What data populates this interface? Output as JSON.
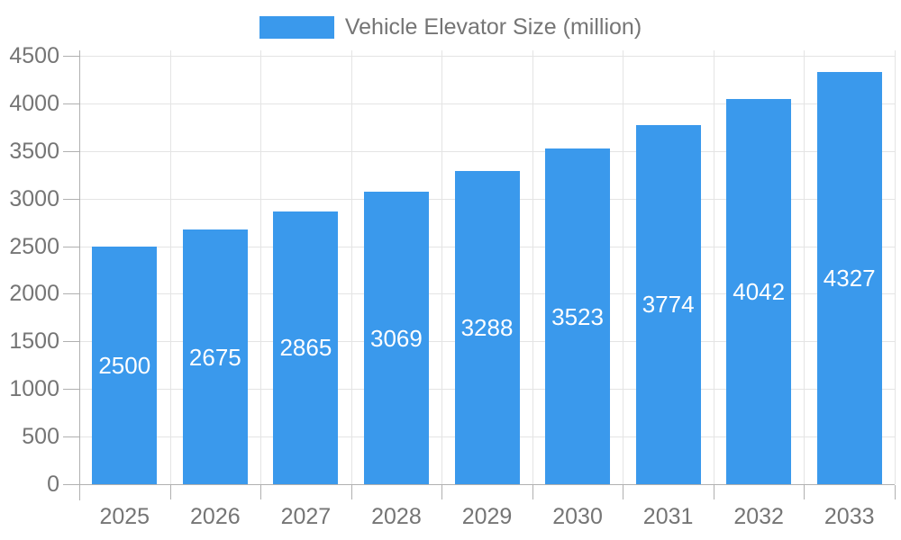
{
  "chart_data": {
    "type": "bar",
    "title": "Vehicle Elevator Size (million)",
    "legend": {
      "label": "Vehicle Elevator Size (million)",
      "position": "top"
    },
    "categories": [
      "2025",
      "2026",
      "2027",
      "2028",
      "2029",
      "2030",
      "2031",
      "2032",
      "2033"
    ],
    "values": [
      2500,
      2675,
      2865,
      3069,
      3288,
      3523,
      3774,
      4042,
      4327
    ],
    "xlabel": "",
    "ylabel": "",
    "ylim": [
      0,
      4500
    ],
    "ytick_step": 500,
    "yticks": [
      "0",
      "500",
      "1000",
      "1500",
      "2000",
      "2500",
      "3000",
      "3500",
      "4000",
      "4500"
    ],
    "grid": true,
    "value_labels_inside_bars": true,
    "colors": {
      "bar": "#3A99EC",
      "value_label": "#FFFFFF",
      "axis_text": "#757575",
      "grid_line": "#E4E4E4",
      "axis_line": "#B0B0B0",
      "background": "#FFFFFF"
    }
  }
}
